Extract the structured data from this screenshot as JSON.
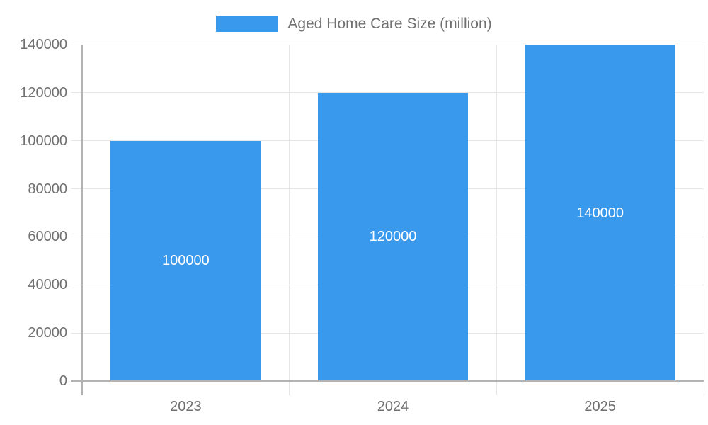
{
  "legend": {
    "label": "Aged Home Care Size (million)"
  },
  "chart_data": {
    "type": "bar",
    "title": "",
    "xlabel": "",
    "ylabel": "",
    "categories": [
      "2023",
      "2024",
      "2025"
    ],
    "series": [
      {
        "name": "Aged Home Care Size (million)",
        "values": [
          100000,
          120000,
          140000
        ]
      }
    ],
    "data_labels": [
      "100000",
      "120000",
      "140000"
    ],
    "ylim": [
      0,
      140000
    ],
    "yticks": [
      0,
      20000,
      40000,
      60000,
      80000,
      100000,
      120000,
      140000
    ],
    "grid": true,
    "legend_position": "top",
    "bar_fraction": 0.724
  },
  "colors": {
    "bar": "#3999EC",
    "grid": "#e6e6e6",
    "axis": "#b3b3b3",
    "tick_text": "#707070",
    "bar_label_text": "#ffffff",
    "background": "#ffffff"
  }
}
